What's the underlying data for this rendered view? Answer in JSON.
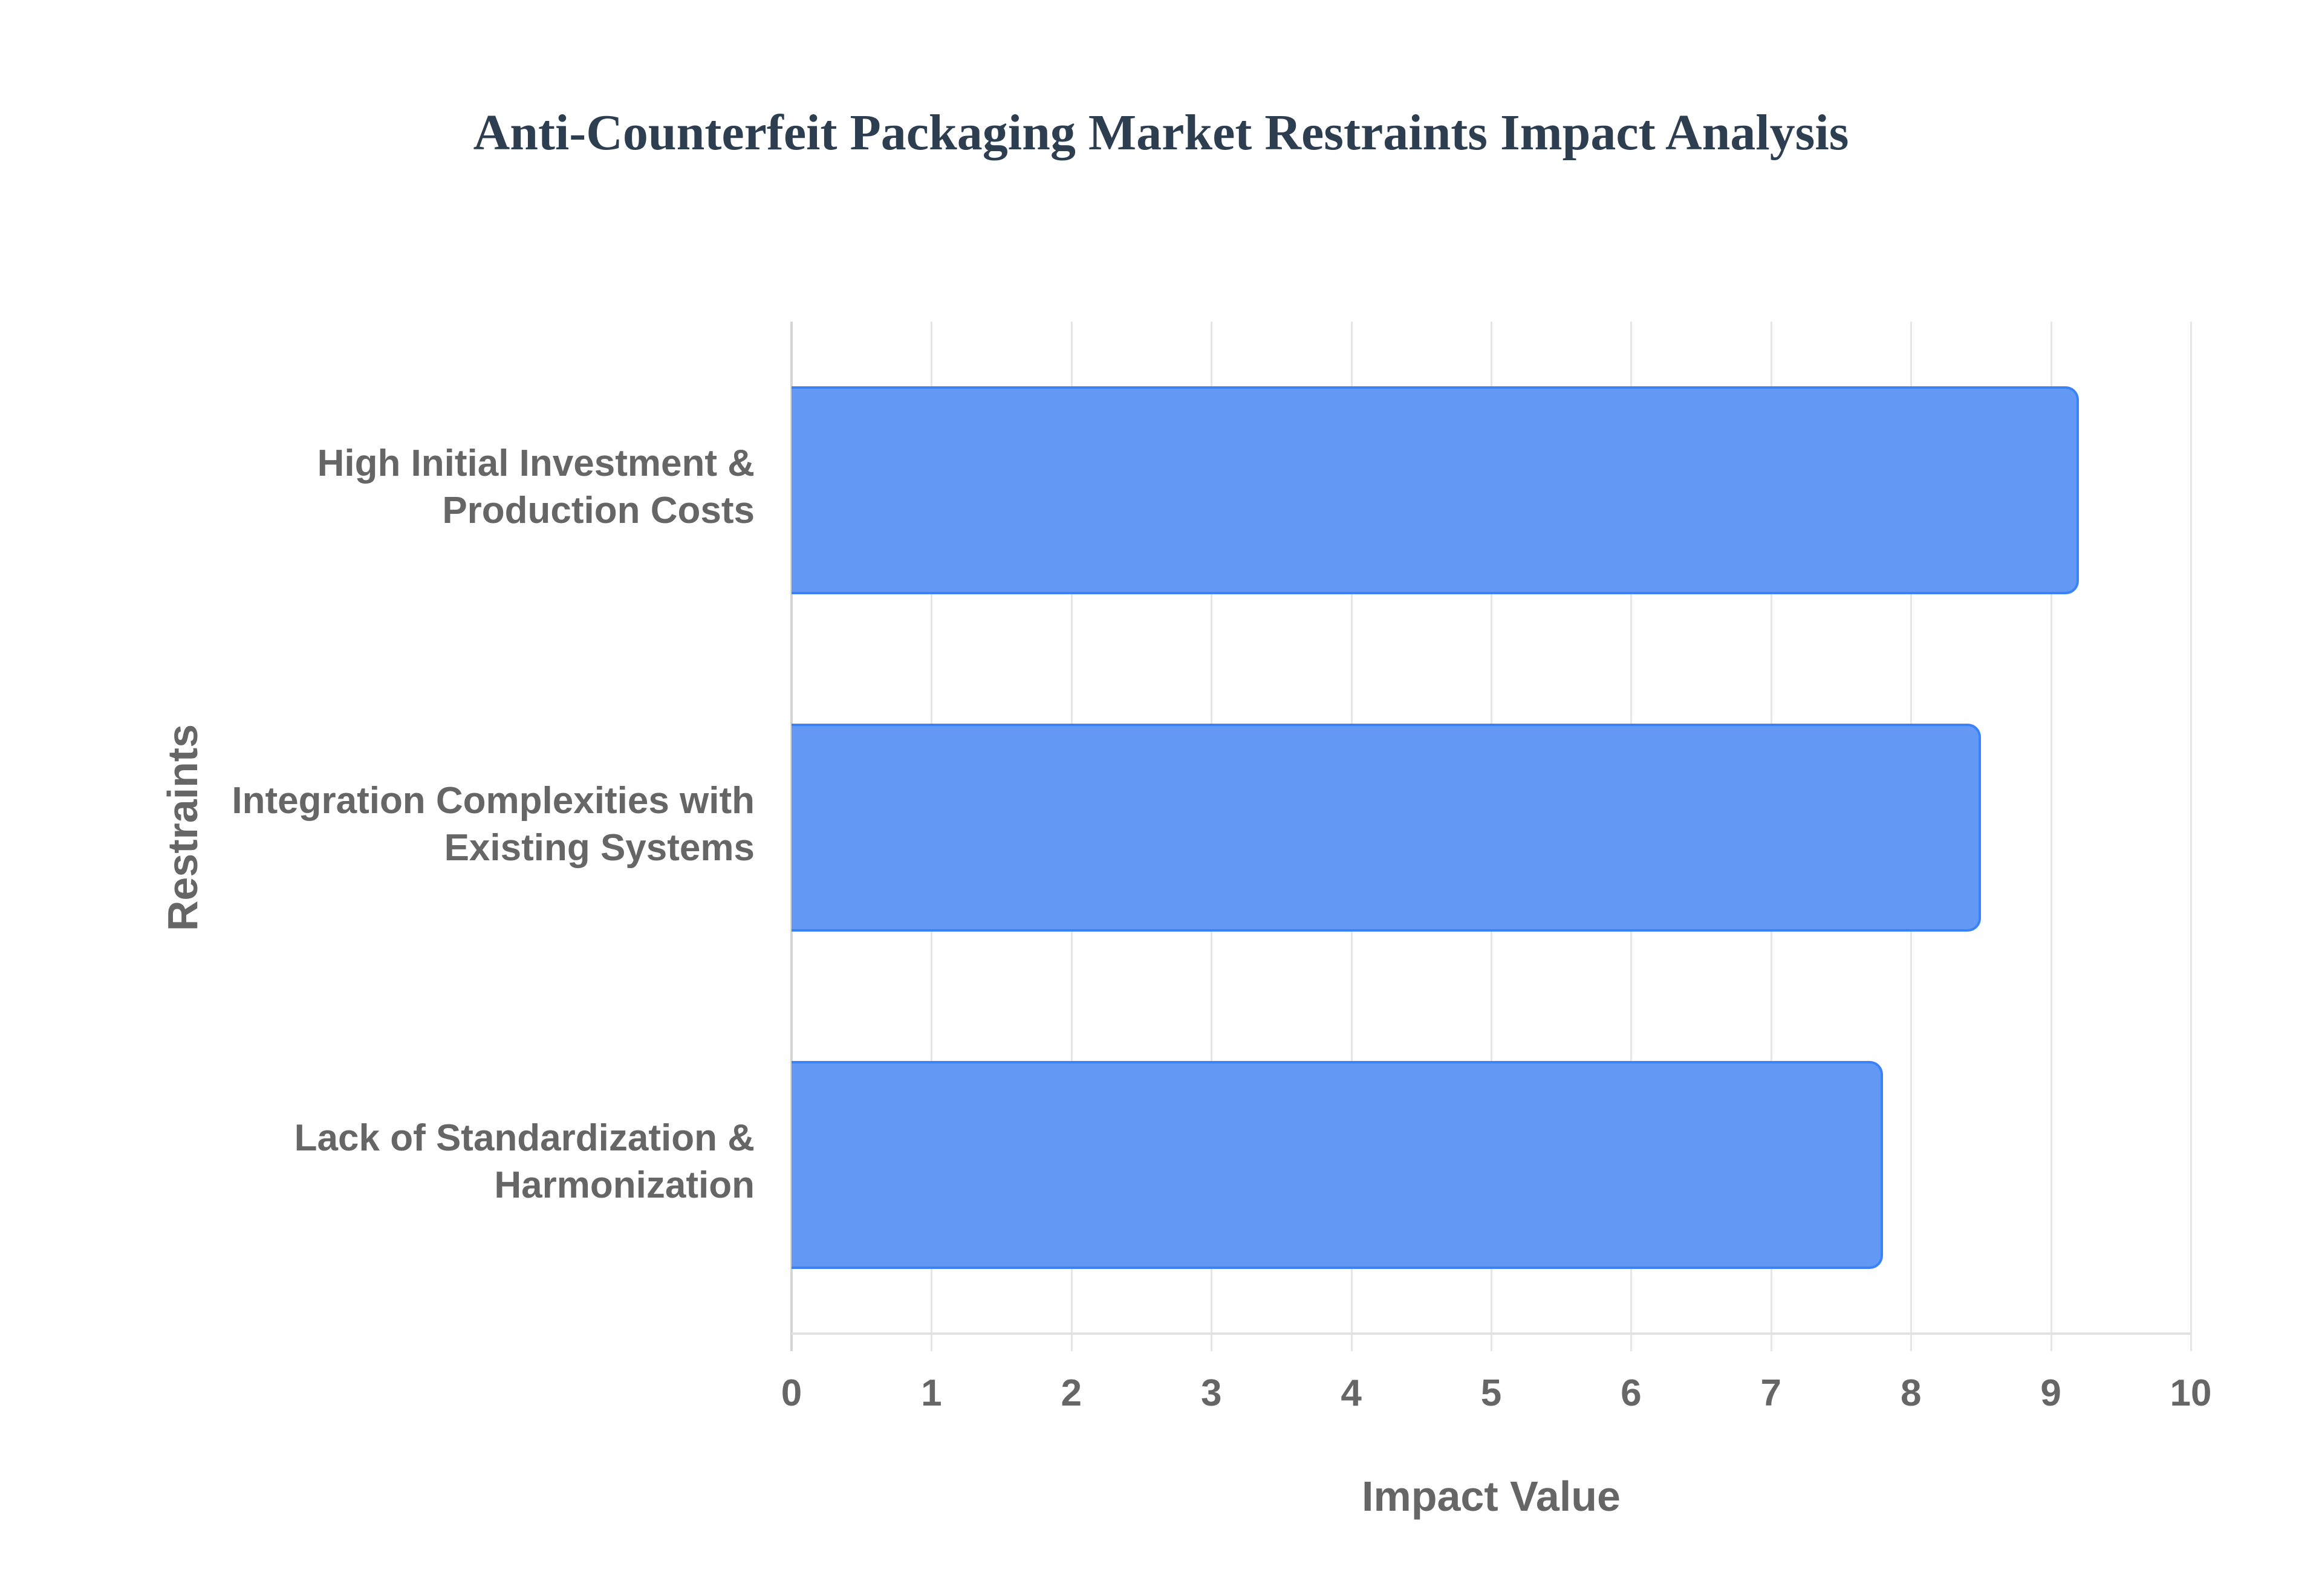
{
  "chart_data": {
    "type": "bar",
    "orientation": "horizontal",
    "title": "Anti-Counterfeit Packaging Market Restraints Impact Analysis",
    "xlabel": "Impact Value",
    "ylabel": "Restraints",
    "xlim": [
      0,
      10
    ],
    "x_ticks": [
      "0",
      "1",
      "2",
      "3",
      "4",
      "5",
      "6",
      "7",
      "8",
      "9",
      "10"
    ],
    "grid": true,
    "legend": null,
    "categories": [
      "High Initial Investment & Production Costs",
      "Integration Complexities with Existing Systems",
      "Lack of Standardization & Harmonization"
    ],
    "category_label_lines": [
      [
        "High Initial Investment &",
        "Production Costs"
      ],
      [
        "Integration Complexities with",
        "Existing Systems"
      ],
      [
        "Lack of Standardization &",
        "Harmonization"
      ]
    ],
    "values": [
      9.2,
      8.5,
      7.8
    ],
    "colors": {
      "bar_fill": "#6399F4",
      "bar_border": "#3B82F6",
      "title": "#2C3E50",
      "axis_text": "#666666",
      "gridline": "#E6E6E6"
    }
  }
}
